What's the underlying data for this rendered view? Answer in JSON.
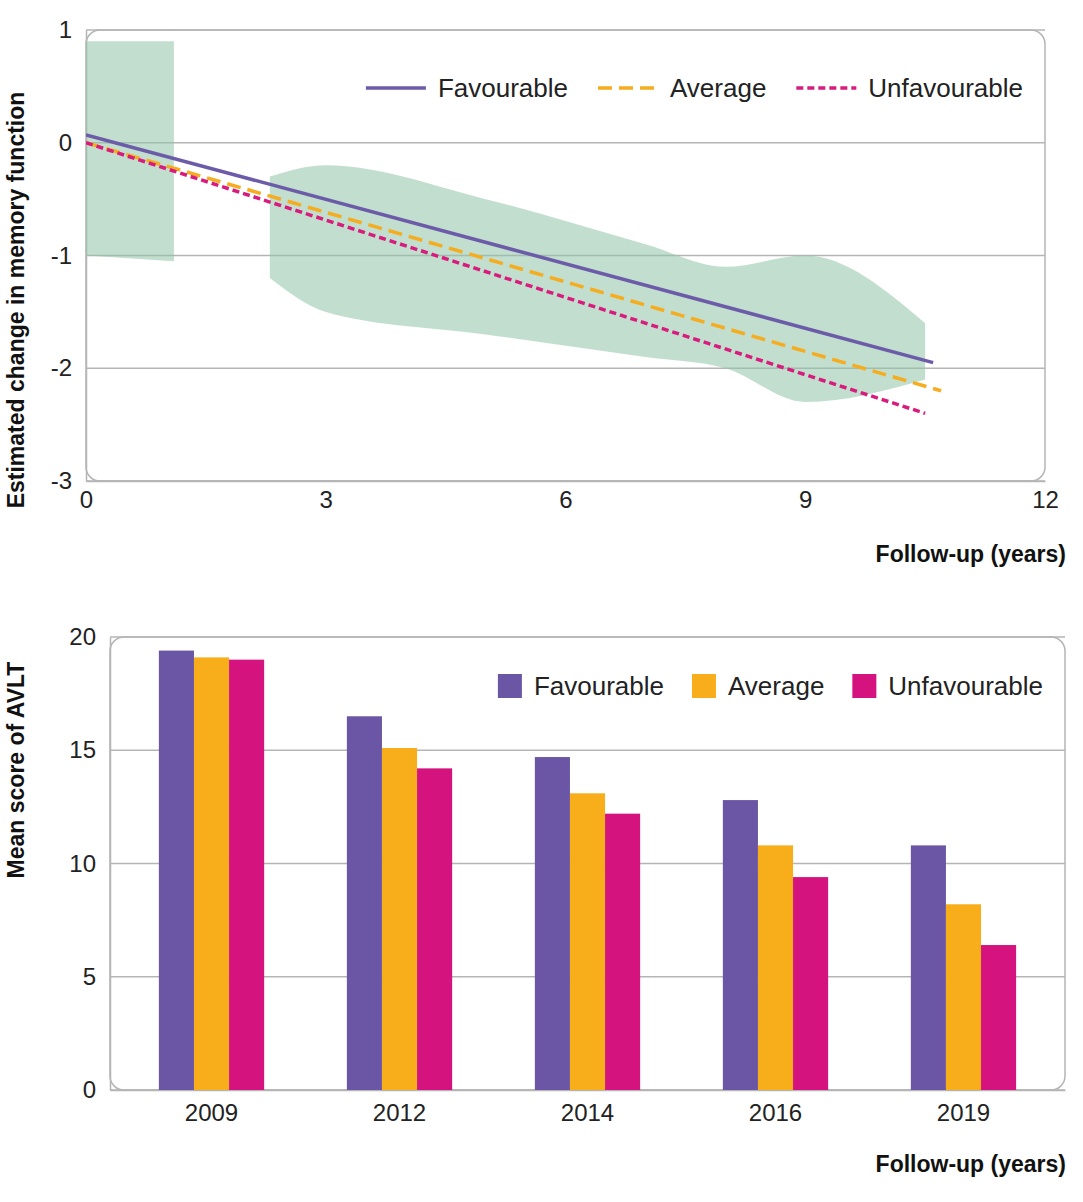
{
  "chart_data": [
    {
      "type": "line",
      "x_label": "Follow-up (years)",
      "y_label": "Estimated change in memory function",
      "xlim": [
        0,
        12
      ],
      "xticks": [
        0,
        3,
        6,
        9,
        12
      ],
      "ylim": [
        -3,
        1
      ],
      "yticks": [
        -3,
        -2,
        -1,
        0,
        1
      ],
      "grid": true,
      "legend": "top-right",
      "series": [
        {
          "type": "area",
          "color": "#8fc3a5",
          "x": [
            0,
            1.1
          ],
          "values": [
            0.9,
            0.9
          ],
          "lower": [
            -1.0,
            -1.05
          ]
        },
        {
          "type": "area",
          "color": "#8fc3a5",
          "x": [
            2.3,
            3,
            5,
            7,
            8,
            9,
            10.5
          ],
          "values": [
            -0.3,
            -0.2,
            -0.5,
            -0.9,
            -1.1,
            -1.0,
            -1.6
          ],
          "lower": [
            -1.2,
            -1.5,
            -1.7,
            -1.9,
            -2.0,
            -2.3,
            -2.1
          ]
        },
        {
          "name": "Favourable",
          "color": "#6b5ba8",
          "line_style": "solid",
          "x": [
            0,
            10.6
          ],
          "values": [
            0.07,
            -1.95
          ]
        },
        {
          "name": "Average",
          "color": "#f5ad1f",
          "line_style": "dashed",
          "x": [
            0,
            10.7
          ],
          "values": [
            0,
            -2.2
          ]
        },
        {
          "name": "Unfavourable",
          "color": "#d81b7c",
          "line_style": "dotted",
          "x": [
            0,
            10.5
          ],
          "values": [
            0,
            -2.4
          ]
        }
      ]
    },
    {
      "type": "bar",
      "x_label": "Follow-up (years)",
      "y_label": "Mean score of AVLT",
      "categories": [
        "2009",
        "2012",
        "2014",
        "2016",
        "2019"
      ],
      "ylim": [
        0,
        20
      ],
      "yticks": [
        0,
        5,
        10,
        15,
        20
      ],
      "grid": true,
      "legend": "top-right",
      "series": [
        {
          "name": "Favourable",
          "color": "#6a56a4",
          "values": [
            19.4,
            16.5,
            14.7,
            12.8,
            10.8
          ]
        },
        {
          "name": "Average",
          "color": "#f8ae1a",
          "values": [
            19.1,
            15.1,
            13.1,
            10.8,
            8.2
          ]
        },
        {
          "name": "Unfavourable",
          "color": "#d5137f",
          "values": [
            19.0,
            14.2,
            12.2,
            9.4,
            6.4
          ]
        }
      ]
    }
  ]
}
